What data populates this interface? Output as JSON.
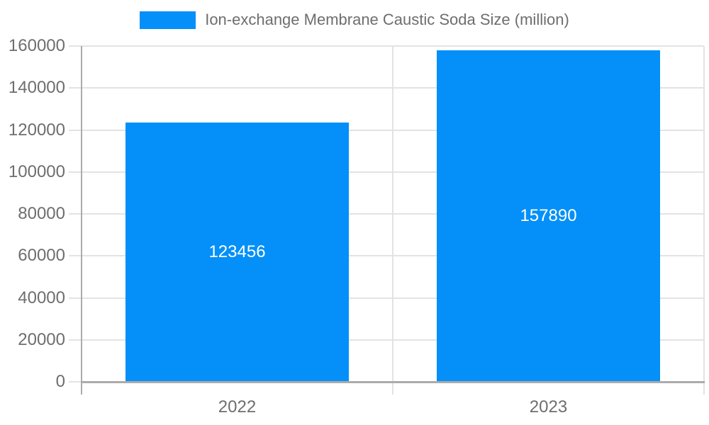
{
  "legend": {
    "series_label": "Ion-exchange Membrane Caustic Soda Size (million)"
  },
  "chart_data": {
    "type": "bar",
    "title": "",
    "series_name": "Ion-exchange Membrane Caustic Soda Size (million)",
    "categories": [
      "2022",
      "2023"
    ],
    "values": [
      123456,
      157890
    ],
    "value_labels": [
      "123456",
      "157890"
    ],
    "xlabel": "",
    "ylabel": "",
    "ylim": [
      0,
      160000
    ],
    "yticks": [
      0,
      20000,
      40000,
      60000,
      80000,
      100000,
      120000,
      140000,
      160000
    ],
    "grid": true,
    "legend_position": "top-center"
  },
  "colors": {
    "bar": "#0490f8",
    "gridline": "#e3e3e3",
    "axis": "#ababab",
    "tick_text": "#6e6e6e",
    "value_label": "#ffffff",
    "background": "#ffffff"
  }
}
